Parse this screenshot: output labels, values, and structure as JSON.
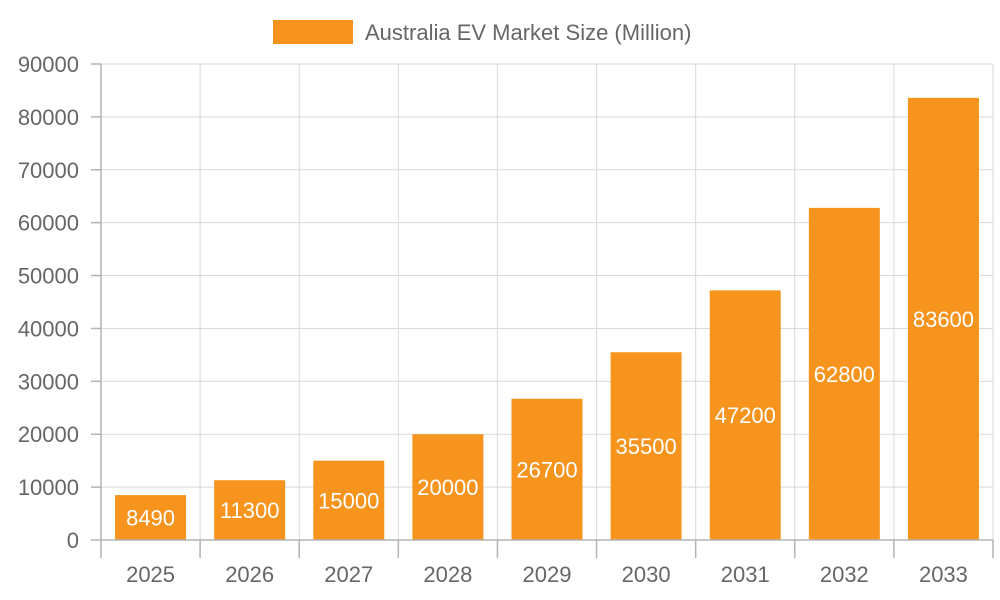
{
  "chart_data": {
    "type": "bar",
    "categories": [
      "2025",
      "2026",
      "2027",
      "2028",
      "2029",
      "2030",
      "2031",
      "2032",
      "2033"
    ],
    "series": [
      {
        "name": "Australia EV Market Size (Million)",
        "values": [
          8490,
          11300,
          15000,
          20000,
          26700,
          35500,
          47200,
          62800,
          83600
        ],
        "color": "#f7941e"
      }
    ],
    "ylim": [
      0,
      90000
    ],
    "yticks": [
      0,
      10000,
      20000,
      30000,
      40000,
      50000,
      60000,
      70000,
      80000,
      90000
    ],
    "grid": true,
    "legend_position": "top-center",
    "data_labels": true
  }
}
